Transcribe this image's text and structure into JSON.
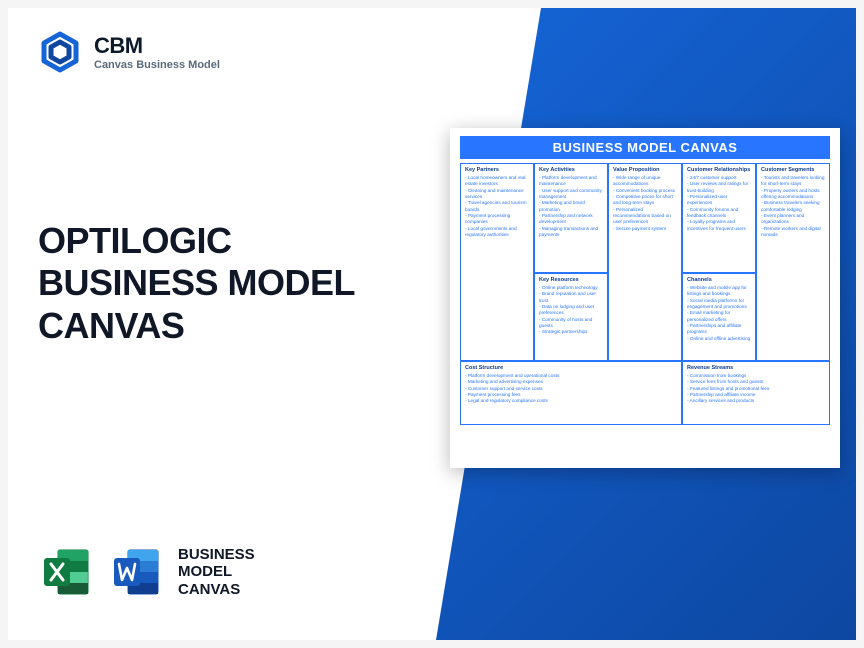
{
  "logo": {
    "abbr": "CBM",
    "subtitle": "Canvas Business Model"
  },
  "title": {
    "line1": "OPTILOGIC",
    "line2": "BUSINESS MODEL",
    "line3": "CANVAS"
  },
  "icons_label": {
    "line1": "BUSINESS",
    "line2": "MODEL",
    "line3": "CANVAS"
  },
  "colors": {
    "brand_blue": "#1565d8",
    "brand_blue_dark": "#0d47a1",
    "canvas_header": "#2876ff",
    "canvas_border": "#2876ff",
    "heading_text": "#0b3c91",
    "item_text": "#2876ff",
    "title_text": "#101828",
    "logo_sub": "#5a6b7c",
    "excel_green": "#107c41",
    "excel_green_light": "#21a366",
    "word_blue": "#185abd",
    "word_blue_light": "#2b7cd3"
  },
  "canvas": {
    "header": "BUSINESS MODEL CANVAS",
    "sections": {
      "key_partners": {
        "title": "Key Partners",
        "items": [
          "Local homeowners and real estate investors",
          "Cleaning and maintenance services",
          "Travel agencies and tourism boards",
          "Payment processing companies",
          "Local governments and regulatory authorities"
        ]
      },
      "key_activities": {
        "title": "Key Activities",
        "items": [
          "Platform development and maintenance",
          "User support and community management",
          "Marketing and brand promotion",
          "Partnership and network development",
          "Managing transactions and payments"
        ]
      },
      "key_resources": {
        "title": "Key Resources",
        "items": [
          "Online platform technology",
          "Brand reputation and user trust",
          "Data on lodging and user preferences",
          "Community of hosts and guests",
          "Strategic partnerships"
        ]
      },
      "value_proposition": {
        "title": "Value Proposition",
        "items": [
          "Wide range of unique accommodations",
          "Convenient booking process",
          "Competitive prices for short and long-term stays",
          "Personalized recommendations based on user preferences",
          "Secure payment system"
        ]
      },
      "customer_relationships": {
        "title": "Customer Relationships",
        "items": [
          "24/7 customer support",
          "User reviews and ratings for trust-building",
          "Personalized user experiences",
          "Community forums and feedback channels",
          "Loyalty programs and incentives for frequent users"
        ]
      },
      "channels": {
        "title": "Channels",
        "items": [
          "Website and mobile app for listings and bookings",
          "Social media platforms for engagement and promotions",
          "Email marketing for personalized offers",
          "Partnerships and affiliate programs",
          "Online and offline advertising"
        ]
      },
      "customer_segments": {
        "title": "Customer Segments",
        "items": [
          "Tourists and travelers looking for short-term stays",
          "Property owners and hosts offering accommodations",
          "Business travelers seeking comfortable lodging",
          "Event planners and organizations",
          "Remote workers and digital nomads"
        ]
      },
      "cost_structure": {
        "title": "Cost Structure",
        "items": [
          "Platform development and operational costs",
          "Marketing and advertising expenses",
          "Customer support and service costs",
          "Payment processing fees",
          "Legal and regulatory compliance costs"
        ]
      },
      "revenue_streams": {
        "title": "Revenue Streams",
        "items": [
          "Commission from bookings",
          "Service fees from hosts and guests",
          "Featured listings and promotional fees",
          "Partnership and affiliate income",
          "Ancillary services and products"
        ]
      }
    }
  }
}
